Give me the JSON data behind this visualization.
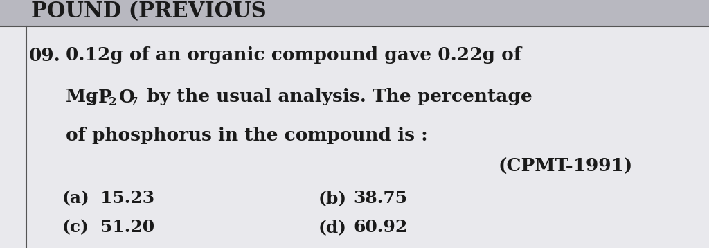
{
  "header_text": "POUND (PREVIOUS",
  "question_number": "09.",
  "line1": "0.12g of an organic compound gave 0.22g of",
  "line2_part1": "Mg",
  "line2_sub1": "2",
  "line2_part2": "P",
  "line2_sub2": "2",
  "line2_part3": "O",
  "line2_sub3": "7",
  "line2_suffix": " by the usual analysis. The percentage",
  "line3": "of phosphorus in the compound is :",
  "source": "(CPMT-1991)",
  "options": [
    {
      "label": "(a)",
      "value": "15.23"
    },
    {
      "label": "(b)",
      "value": "38.75"
    },
    {
      "label": "(c)",
      "value": "51.20"
    },
    {
      "label": "(d)",
      "value": "60.92"
    }
  ],
  "bg_color": "#e9e9ed",
  "text_color": "#1a1a1a",
  "header_bg": "#b8b8c0",
  "border_color": "#555555"
}
